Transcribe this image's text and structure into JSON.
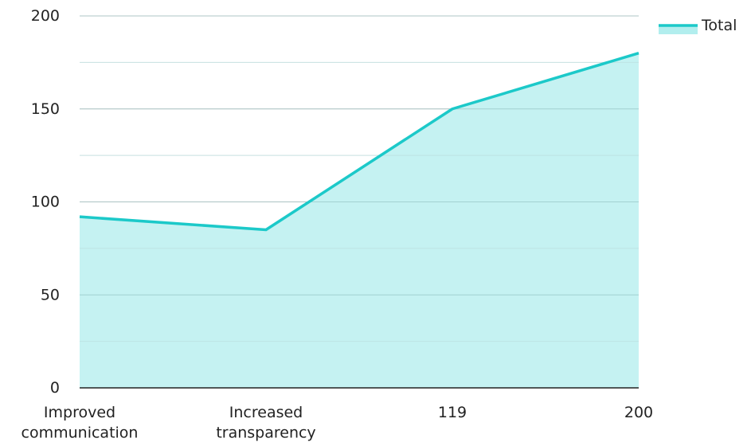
{
  "chart_data": {
    "type": "area",
    "title": "",
    "xlabel": "",
    "ylabel": "",
    "categories": [
      "Improved communication",
      "Increased transparency",
      "119",
      "200"
    ],
    "series": [
      {
        "name": "Total",
        "values": [
          92,
          85,
          150,
          180
        ]
      }
    ],
    "ylim": [
      0,
      200
    ],
    "yticks": [
      0,
      50,
      100,
      150,
      200
    ],
    "grid": true,
    "legend_position": "top-right",
    "colors": {
      "line": "#1cc9c9",
      "fill": "#b2eeee",
      "grid_major": "#c8c8c8",
      "grid_minor": "#e4e4e4",
      "axis": "#222222",
      "text": "#222222"
    }
  }
}
